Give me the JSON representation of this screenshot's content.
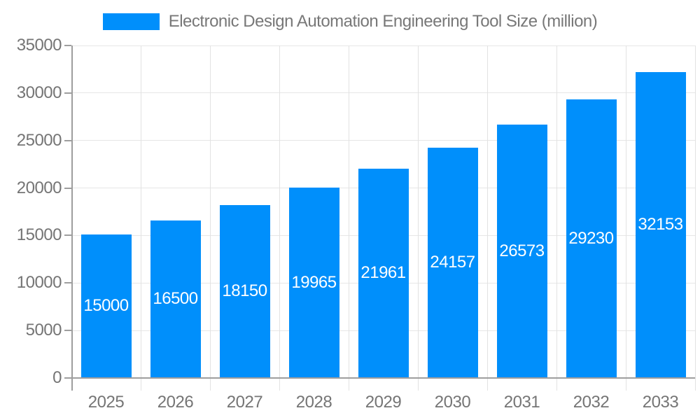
{
  "legend": {
    "label": "Electronic Design Automation Engineering Tool Size (million)",
    "swatch_color": "#008ffb"
  },
  "chart_data": {
    "type": "bar",
    "title": "Electronic Design Automation Engineering Tool Size (million)",
    "series_name": "Electronic Design Automation Engineering Tool Size (million)",
    "categories": [
      "2025",
      "2026",
      "2027",
      "2028",
      "2029",
      "2030",
      "2031",
      "2032",
      "2033"
    ],
    "values": [
      15000,
      16500,
      18150,
      19965,
      21961,
      24157,
      26573,
      29230,
      32153
    ],
    "value_labels": [
      "15000",
      "16500",
      "18150",
      "19965",
      "21961",
      "24157",
      "26573",
      "29230",
      "32153"
    ],
    "ylim": [
      0,
      35000
    ],
    "ytick_step": 5000,
    "ytick_labels": [
      "0",
      "5000",
      "10000",
      "15000",
      "20000",
      "25000",
      "30000",
      "35000"
    ],
    "xlabel": "",
    "ylabel": "",
    "grid": true,
    "legend_position": "top",
    "data_label_position": "inside-center",
    "bar_color": "#008ffb",
    "value_label_color": "#ffffff",
    "axis_label_color": "#757575",
    "axis_line_color": "#9e9e9e",
    "gridline_color": "#e6e6e6",
    "background_color": "#ffffff"
  }
}
